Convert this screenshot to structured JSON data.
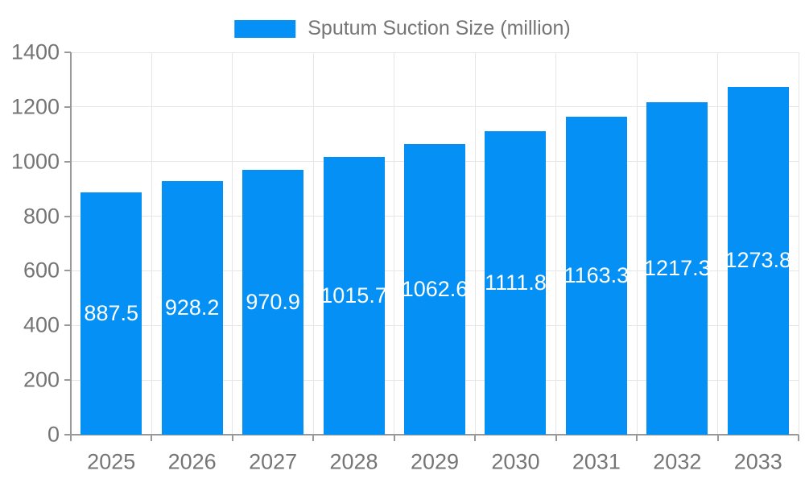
{
  "chart_data": {
    "type": "bar",
    "title": "",
    "legend": "Sputum Suction Size (million)",
    "legend_position": "top-center",
    "categories": [
      "2025",
      "2026",
      "2027",
      "2028",
      "2029",
      "2030",
      "2031",
      "2032",
      "2033"
    ],
    "values": [
      887.5,
      928.2,
      970.9,
      1015.7,
      1062.6,
      1111.8,
      1163.3,
      1217.3,
      1273.8
    ],
    "value_labels": [
      "887.5",
      "928.2",
      "970.9",
      "1015.7",
      "1062.6",
      "1111.8",
      "1163.3",
      "1217.3",
      "1273.8"
    ],
    "xlabel": "",
    "ylabel": "",
    "ylim": [
      0,
      1400
    ],
    "yticks": [
      0,
      200,
      400,
      600,
      800,
      1000,
      1200,
      1400
    ],
    "grid": true,
    "colors": {
      "bar": "#0590F5",
      "value_label": "#ffffff",
      "axis_line": "#999999",
      "grid_line": "#e6e6e6",
      "tick_text": "#757575",
      "legend_text": "#757575",
      "background": "#ffffff"
    }
  }
}
